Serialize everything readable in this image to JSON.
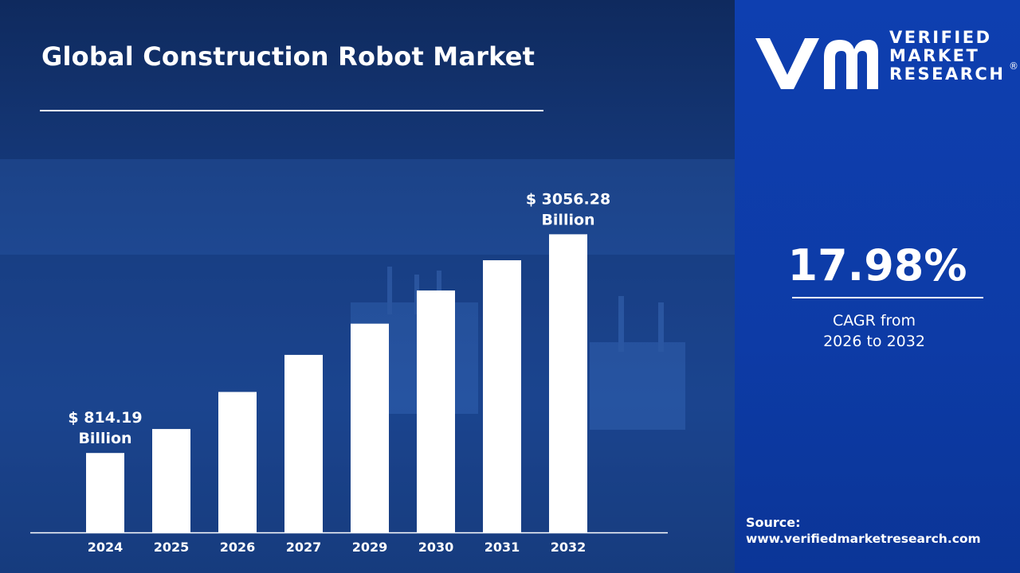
{
  "title": "Global Construction Robot Market",
  "brand": {
    "lines": [
      "VERIFIED",
      "MARKET",
      "RESEARCH"
    ],
    "registered": "®"
  },
  "cagr": {
    "value": "17.98%",
    "caption_line1": "CAGR from",
    "caption_line2": "2026 to 2032"
  },
  "source": {
    "label": "Source:",
    "url": "www.verifiedmarketresearch.com"
  },
  "colors": {
    "bar": "#ffffff",
    "panel_blue": "#0d3ba6",
    "background_navy": "#183f86"
  },
  "chart_data": {
    "type": "bar",
    "categories": [
      "2024",
      "2025",
      "2026",
      "2027",
      "2029",
      "2030",
      "2031",
      "2032"
    ],
    "values": [
      814.19,
      1060,
      1440,
      1820,
      2140,
      2480,
      2790,
      3056.28
    ],
    "ylim": [
      0,
      3500
    ],
    "unit": "Billion",
    "grid": false,
    "data_labels": [
      {
        "category": "2024",
        "lines": [
          "$ 814.19",
          "Billion"
        ]
      },
      {
        "category": "2032",
        "lines": [
          "$ 3056.28",
          "Billion"
        ]
      }
    ]
  }
}
